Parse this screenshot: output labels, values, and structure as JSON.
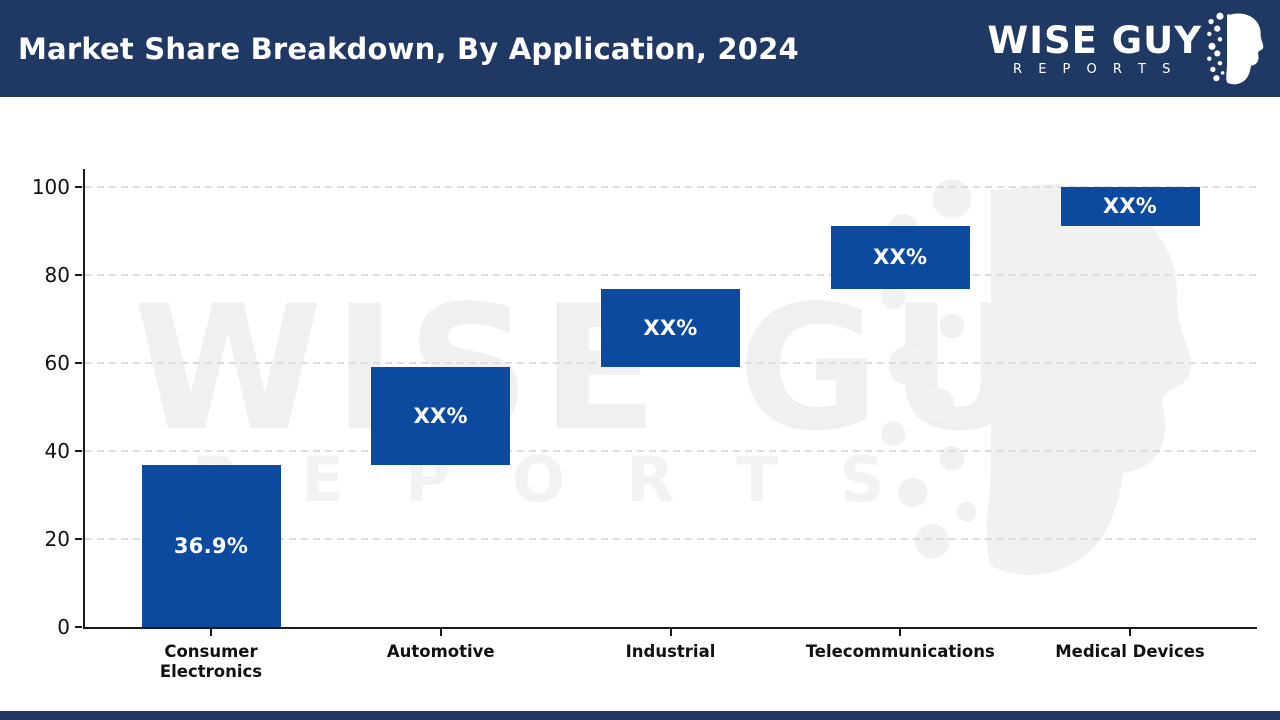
{
  "header": {
    "title": "Market Share Breakdown, By Application, 2024",
    "bg_color": "#1f3864",
    "logo": {
      "line1": "WISE GUY",
      "line2": "R E P O R T S",
      "head_icon": "dotted-head-profile-icon"
    }
  },
  "watermark": {
    "line1": "WISE GUY",
    "line2": "R E P O R T S",
    "head_icon": "dotted-head-profile-icon"
  },
  "footer": {
    "bg_color": "#1f3864"
  },
  "chart_data": {
    "type": "bar",
    "subtype": "waterfall",
    "title": "Market Share Breakdown, By Application, 2024",
    "xlabel": "",
    "ylabel": "",
    "ylim": [
      0,
      100
    ],
    "yticks": [
      0,
      20,
      40,
      60,
      80,
      100
    ],
    "grid": "horizontal-dashed",
    "legend": "none",
    "bar_color": "#0b4a9e",
    "bar_label_color": "#ffffff",
    "axis_color": "#1a1a1a",
    "grid_color": "#dcdcdc",
    "categories": [
      "Consumer Electronics",
      "Automotive",
      "Industrial",
      "Telecommunications",
      "Medical Devices"
    ],
    "segments": [
      {
        "category": "Consumer Electronics",
        "lines": [
          "Consumer",
          "Electronics"
        ],
        "start": 0,
        "end": 36.9,
        "label": "36.9%"
      },
      {
        "category": "Automotive",
        "lines": [
          "Automotive"
        ],
        "start": 36.9,
        "end": 59.2,
        "label": "XX%"
      },
      {
        "category": "Industrial",
        "lines": [
          "Industrial"
        ],
        "start": 59.2,
        "end": 76.9,
        "label": "XX%"
      },
      {
        "category": "Telecommunications",
        "lines": [
          "Telecommunications"
        ],
        "start": 76.9,
        "end": 91.2,
        "label": "XX%"
      },
      {
        "category": "Medical Devices",
        "lines": [
          "Medical Devices"
        ],
        "start": 91.2,
        "end": 100,
        "label": "XX%"
      }
    ]
  }
}
